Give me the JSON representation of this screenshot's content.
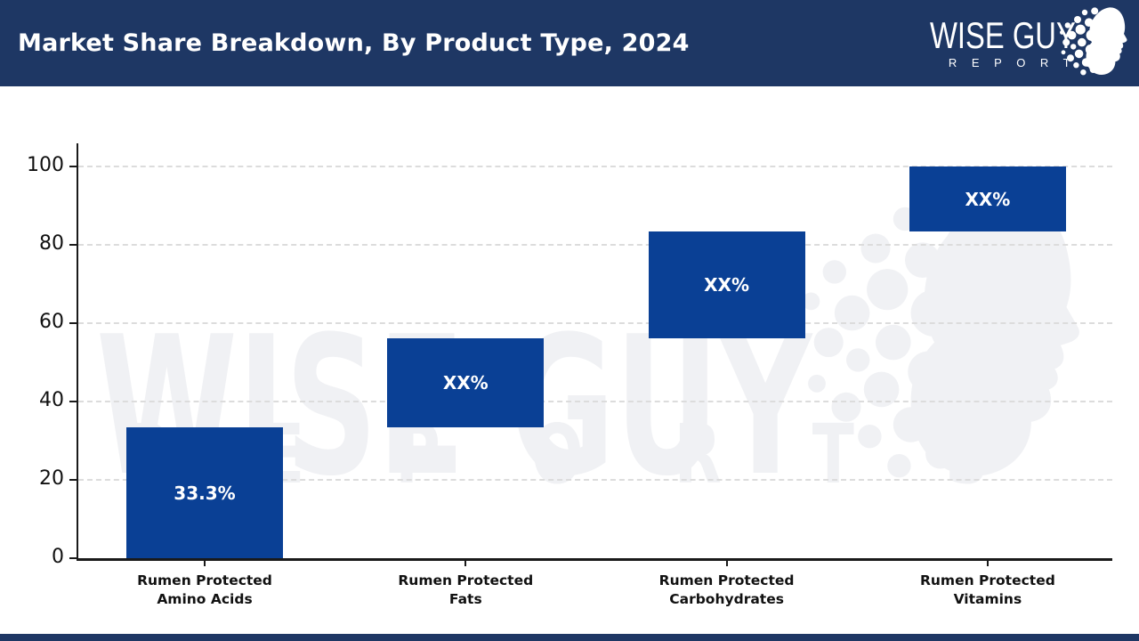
{
  "header": {
    "title": "Market Share Breakdown, By Product Type, 2024",
    "bg_color": "#1e3764",
    "text_color": "#ffffff"
  },
  "logo": {
    "line1": "WISE GUY",
    "line2": "R E P O R T S"
  },
  "watermark": {
    "line1": "WISE GUY",
    "line2": "R E P O R T S"
  },
  "chart_data": {
    "type": "bar",
    "subtype": "floating-waterfall",
    "title": "Market Share Breakdown, By Product Type, 2024",
    "categories": [
      {
        "line1": "Rumen Protected",
        "line2": "Amino Acids"
      },
      {
        "line1": "Rumen Protected",
        "line2": "Fats"
      },
      {
        "line1": "Rumen Protected",
        "line2": "Carbohydrates"
      },
      {
        "line1": "Rumen Protected",
        "line2": "Vitamins"
      }
    ],
    "bars": [
      {
        "start": 0,
        "end": 33.3,
        "label": "33.3%"
      },
      {
        "start": 33.3,
        "end": 56.2,
        "label": "XX%"
      },
      {
        "start": 56.2,
        "end": 83.4,
        "label": "XX%"
      },
      {
        "start": 83.4,
        "end": 100,
        "label": "XX%"
      }
    ],
    "xlabel": "",
    "ylabel": "",
    "ylim": [
      0,
      105
    ],
    "yticks": [
      0,
      20,
      40,
      60,
      80,
      100
    ],
    "grid": "horizontal-dashed",
    "legend": "none",
    "bar_color": "#0a4095",
    "bar_label_color": "#ffffff",
    "grid_color": "#dcdcdc",
    "axis_color": "#1a1a1a"
  }
}
